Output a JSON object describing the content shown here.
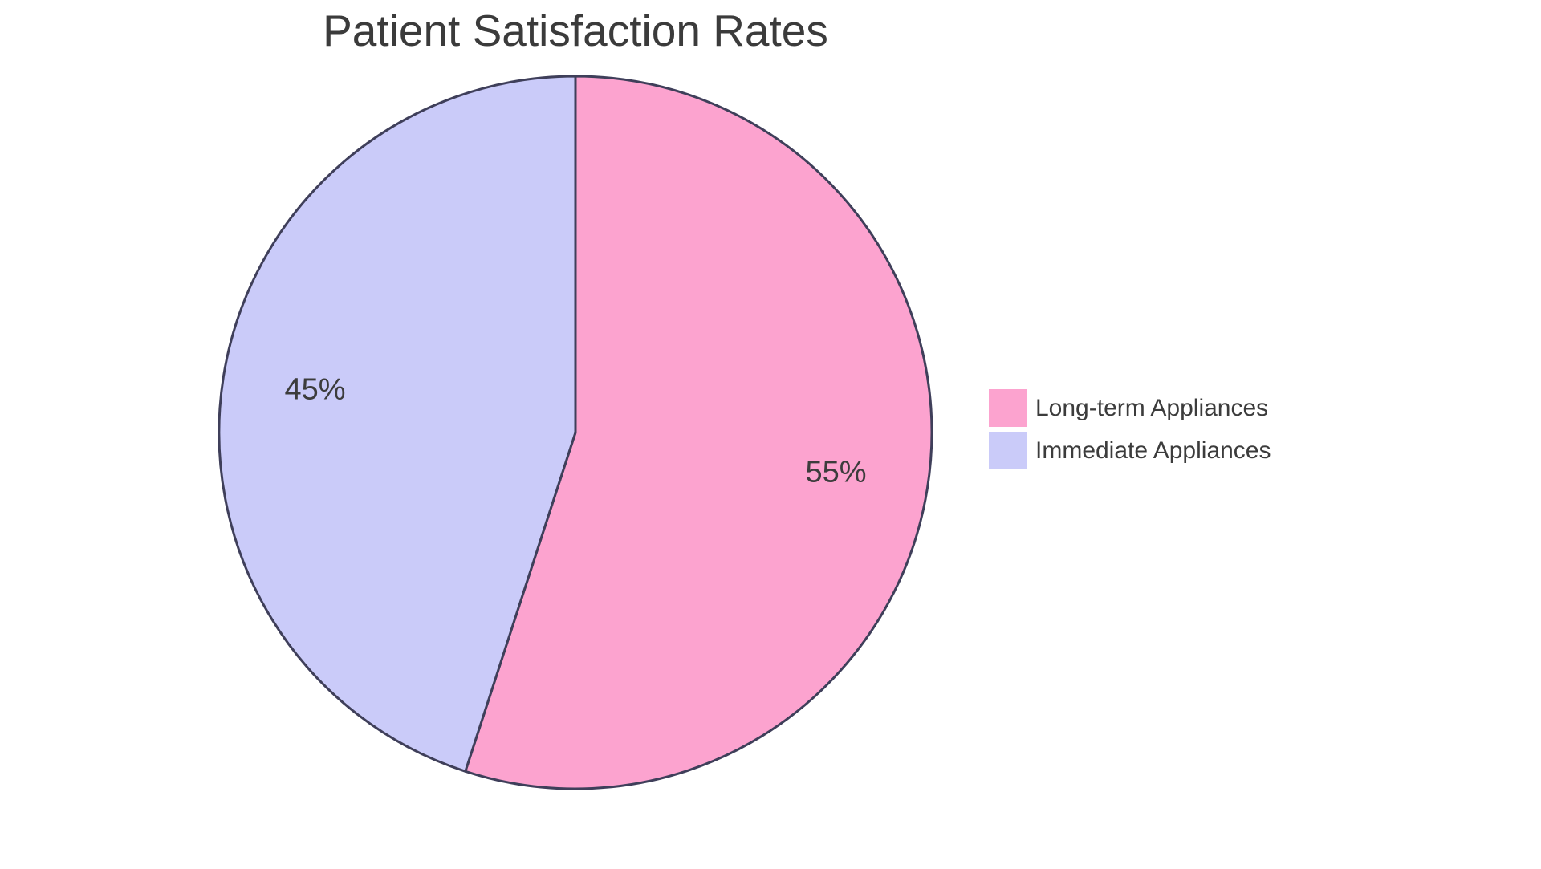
{
  "title": "Patient Satisfaction Rates",
  "chart_data": {
    "type": "pie",
    "title": "Patient Satisfaction Rates",
    "categories": [
      "Long-term Appliances",
      "Immediate Appliances"
    ],
    "values": [
      55,
      45
    ],
    "slice_labels": [
      "55%",
      "45%"
    ],
    "colors": [
      "#FCA3CF",
      "#CACBF9"
    ],
    "stroke_color": "#3F3F5A",
    "start_angle": "top",
    "direction": "clockwise",
    "legend_position": "right"
  },
  "legend": {
    "items": [
      {
        "label": "Long-term Appliances",
        "color": "#FCA3CF"
      },
      {
        "label": "Immediate Appliances",
        "color": "#CACBF9"
      }
    ]
  }
}
